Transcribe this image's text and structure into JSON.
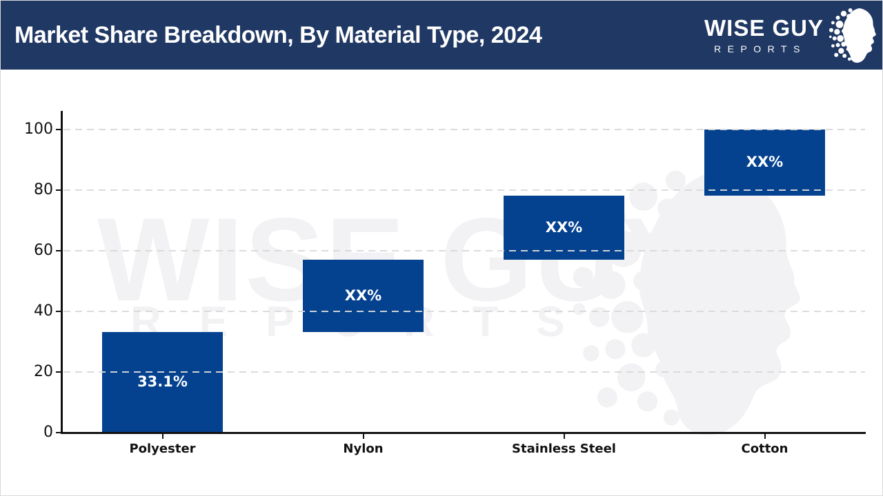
{
  "header": {
    "title": "Market Share Breakdown, By Material Type, 2024"
  },
  "logo": {
    "line1": "WISE GUY",
    "line2": "REPORTS"
  },
  "watermark": {
    "line1": "WISE GUY",
    "line2": "REPORTS"
  },
  "colors": {
    "header_bg": "#203864",
    "title_text": "#ffffff",
    "bar": "#04418f",
    "bar_label": "#ffffff",
    "grid": "#d9d9d9",
    "axis": "#111111",
    "tick_text": "#111111",
    "watermark": "#f2f2f4",
    "page_border": "#d9d9d9"
  },
  "chart_data": {
    "type": "bar",
    "subtype": "waterfall",
    "title": "Market Share Breakdown, By Material Type, 2024",
    "categories": [
      "Polyester",
      "Nylon",
      "Stainless Steel",
      "Cotton"
    ],
    "segments": [
      {
        "category": "Polyester",
        "start": 0,
        "end": 33.1,
        "label": "33.1%"
      },
      {
        "category": "Nylon",
        "start": 33.1,
        "end": 57.1,
        "label": "XX%"
      },
      {
        "category": "Stainless Steel",
        "start": 57.1,
        "end": 78.1,
        "label": "XX%"
      },
      {
        "category": "Cotton",
        "start": 78.1,
        "end": 100,
        "label": "XX%"
      }
    ],
    "ylim": [
      0,
      100
    ],
    "yticks": [
      0,
      20,
      40,
      60,
      80,
      100
    ],
    "xlabel": "",
    "ylabel": "",
    "grid": "horizontal-dashed",
    "legend": "none"
  }
}
